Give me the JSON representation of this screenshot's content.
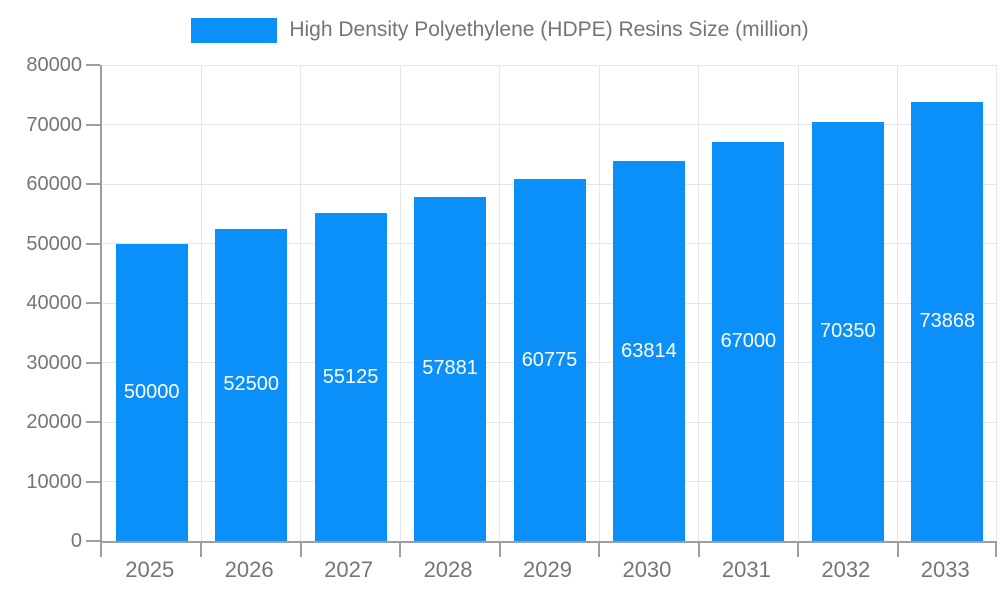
{
  "chart_data": {
    "type": "bar",
    "title": "",
    "legend_position": "top",
    "categories": [
      "2025",
      "2026",
      "2027",
      "2028",
      "2029",
      "2030",
      "2031",
      "2032",
      "2033"
    ],
    "series": [
      {
        "name": "High Density Polyethylene (HDPE) Resins Size (million)",
        "values": [
          50000,
          52500,
          55125,
          57881,
          60775,
          63814,
          67000,
          70350,
          73868
        ]
      }
    ],
    "value_labels": [
      "50000",
      "52500",
      "55125",
      "57881",
      "60775",
      "63814",
      "67000",
      "70350",
      "73868"
    ],
    "xlabel": "",
    "ylabel": "",
    "ylim": [
      0,
      80000
    ],
    "yticks": [
      0,
      10000,
      20000,
      30000,
      40000,
      50000,
      60000,
      70000,
      80000
    ],
    "grid": true
  },
  "colors": {
    "bar": "#0b90f9",
    "grid": "#e6e6e6",
    "axis": "#9e9e9e",
    "text": "#757575",
    "bar_label": "#ffffff",
    "background": "#ffffff"
  }
}
